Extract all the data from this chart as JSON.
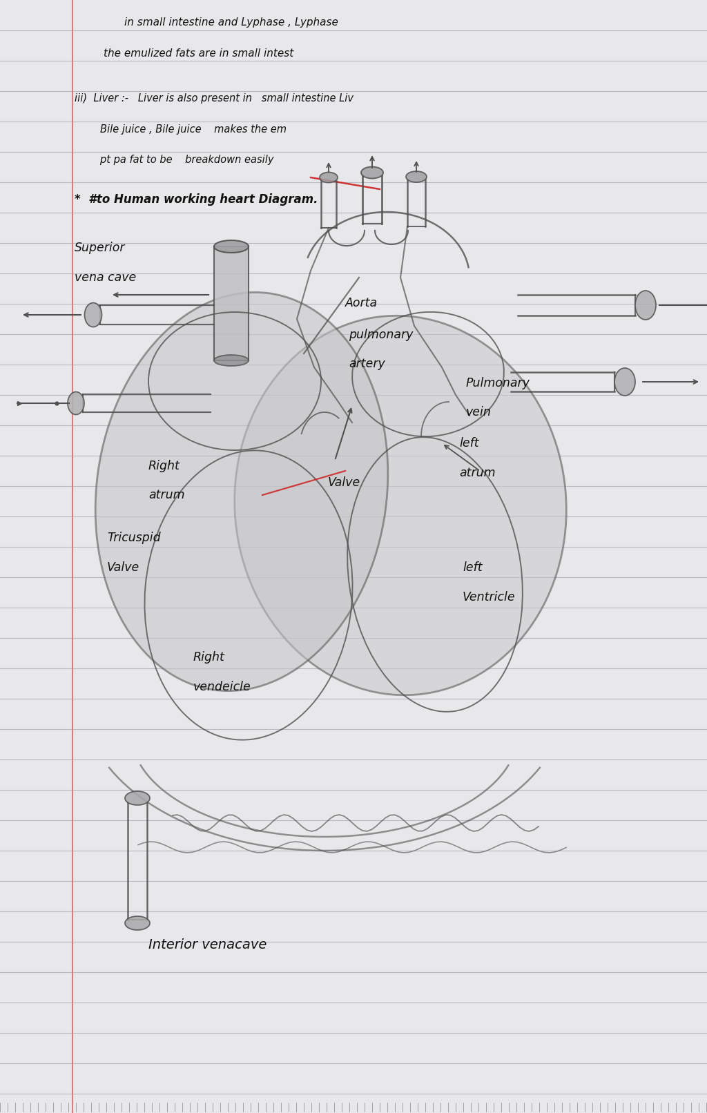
{
  "bg_color": "#d8d8dc",
  "paper_color": "#e8e8ea",
  "line_color": "#b8b8c0",
  "margin_color": "#d08080",
  "text_color": "#111111",
  "pencil_color": "#505050",
  "pencil_light": "#787878",
  "red_color": "#cc2222",
  "fill_heart": "#c8c8ca",
  "fill_vessel": "#b0b0b2",
  "fill_dark": "#909092",
  "top_text1": "in small intestine and Lyphase , Lyphase",
  "top_text2": "the emulized fats are in small intest",
  "liver1": "iii)  Liver :-   Liver is also present in   small intestine Liv",
  "liver2": "        Bile juice , Bile juice    makes the em",
  "liver3": "        pt pa fat to be    breakdown easily",
  "title": "*  #to Human working heart Diagram.",
  "lbl_superior": [
    "Superior",
    "vena cave"
  ],
  "lbl_aorta": "Aorta",
  "lbl_pulm_art": [
    "pulmonary",
    "artery"
  ],
  "lbl_pulm_vein": [
    "Pulmonary",
    "vein"
  ],
  "lbl_left_at": [
    "left",
    "atrum"
  ],
  "lbl_right_at": [
    "Right",
    "atrum"
  ],
  "lbl_valve": "Valve",
  "lbl_tricuspid": [
    "Tricuspid",
    "Valve"
  ],
  "lbl_left_vent": [
    "left",
    "Ventricle"
  ],
  "lbl_right_vent": [
    "Right",
    "vendeicle"
  ],
  "lbl_inferior": "Interior venacave"
}
